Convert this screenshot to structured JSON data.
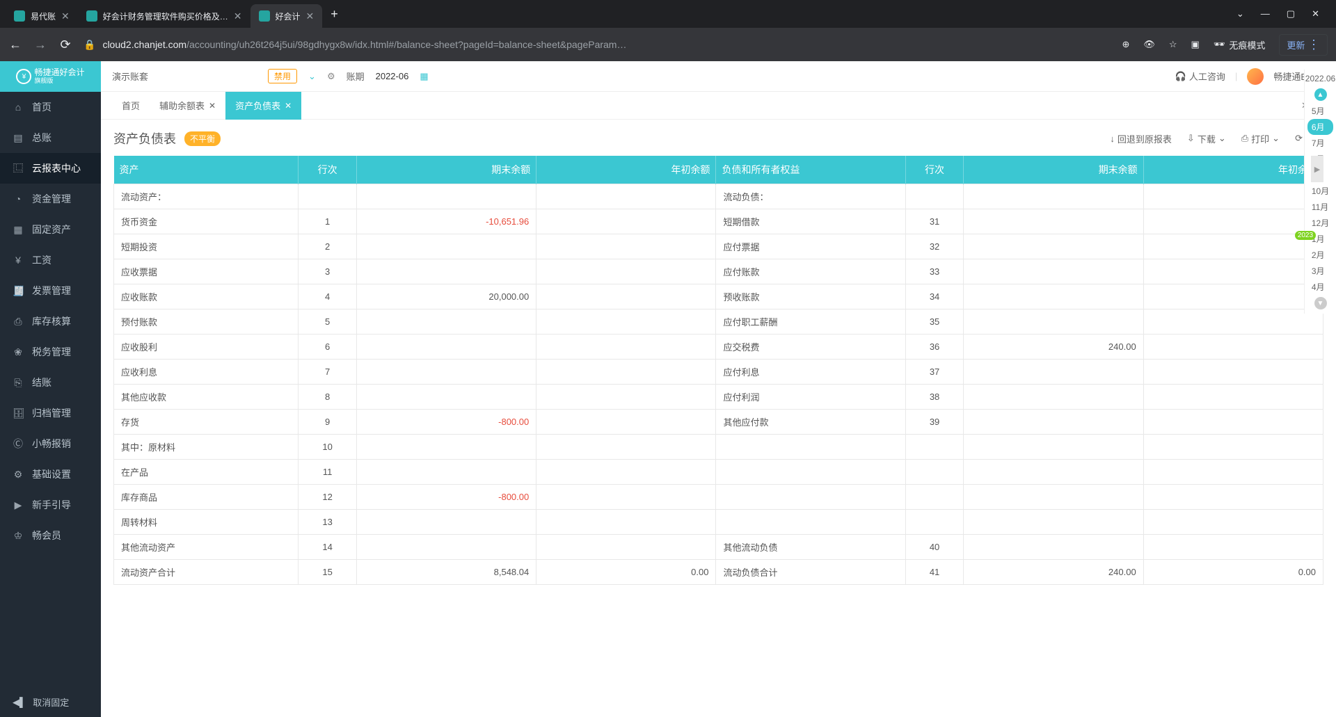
{
  "browser": {
    "tabs": [
      {
        "title": "易代账",
        "active": false
      },
      {
        "title": "好会计财务管理软件购买价格及…",
        "active": false
      },
      {
        "title": "好会计",
        "active": true
      }
    ],
    "url_prefix": "cloud2.chanjet.com",
    "url_rest": "/accounting/uh26t264j5ui/98gdhygx8w/idx.html#/balance-sheet?pageId=balance-sheet&pageParam…",
    "incognito": "无痕模式",
    "update": "更新"
  },
  "logo": {
    "brand": "畅捷通好会计",
    "edition": "旗舰版"
  },
  "sidebar": [
    {
      "icon": "⌂",
      "label": "首页"
    },
    {
      "icon": "▤",
      "label": "总账"
    },
    {
      "icon": "⿺",
      "label": "云报表中心",
      "active": true
    },
    {
      "icon": "◔",
      "label": "资金管理"
    },
    {
      "icon": "▦",
      "label": "固定资产"
    },
    {
      "icon": "¥",
      "label": "工资"
    },
    {
      "icon": "🧾",
      "label": "发票管理"
    },
    {
      "icon": "⎙",
      "label": "库存核算"
    },
    {
      "icon": "❀",
      "label": "税务管理"
    },
    {
      "icon": "⎘",
      "label": "结账"
    },
    {
      "icon": "🗄",
      "label": "归档管理"
    },
    {
      "icon": "Ⓒ",
      "label": "小畅报销"
    },
    {
      "icon": "⚙",
      "label": "基础设置"
    },
    {
      "icon": "▶",
      "label": "新手引导"
    },
    {
      "icon": "♔",
      "label": "畅会员"
    }
  ],
  "sidebar_footer": "取消固定",
  "topbar": {
    "account": "演示账套",
    "disable_tag": "禁用",
    "period_label": "账期",
    "period_value": "2022-06",
    "support": "人工咨询",
    "username": "畅捷通B组…"
  },
  "page_tabs": [
    {
      "label": "首页",
      "closable": false
    },
    {
      "label": "辅助余额表",
      "closable": true
    },
    {
      "label": "资产负债表",
      "closable": true,
      "active": true
    }
  ],
  "page": {
    "title": "资产负债表",
    "badge": "不平衡",
    "actions": {
      "rollback": "回退到原报表",
      "download": "下载",
      "print": "打印",
      "refresh": "刷新"
    }
  },
  "table": {
    "headers": {
      "asset": "资产",
      "row": "行次",
      "end_bal": "期末余额",
      "begin_bal": "年初余额",
      "liab": "负债和所有者权益",
      "row2": "行次",
      "end_bal2": "期末余额",
      "begin_bal2": "年初余额"
    },
    "rows": [
      {
        "a": "流动资产：",
        "r": "",
        "eb": "",
        "bb": "",
        "l": "流动负债：",
        "r2": "",
        "eb2": "",
        "bb2": ""
      },
      {
        "a": "货币资金",
        "r": "1",
        "eb": "-10,651.96",
        "eb_neg": true,
        "bb": "",
        "l": "短期借款",
        "r2": "31",
        "eb2": "",
        "bb2": ""
      },
      {
        "a": "短期投资",
        "r": "2",
        "eb": "",
        "bb": "",
        "l": "应付票据",
        "r2": "32",
        "eb2": "",
        "bb2": ""
      },
      {
        "a": "应收票据",
        "r": "3",
        "eb": "",
        "bb": "",
        "l": "应付账款",
        "r2": "33",
        "eb2": "",
        "bb2": ""
      },
      {
        "a": "应收账款",
        "r": "4",
        "eb": "20,000.00",
        "bb": "",
        "l": "预收账款",
        "r2": "34",
        "eb2": "",
        "bb2": ""
      },
      {
        "a": "预付账款",
        "r": "5",
        "eb": "",
        "bb": "",
        "l": "应付职工薪酬",
        "r2": "35",
        "eb2": "",
        "bb2": ""
      },
      {
        "a": "应收股利",
        "r": "6",
        "eb": "",
        "bb": "",
        "l": "应交税费",
        "r2": "36",
        "eb2": "240.00",
        "bb2": ""
      },
      {
        "a": "应收利息",
        "r": "7",
        "eb": "",
        "bb": "",
        "l": "应付利息",
        "r2": "37",
        "eb2": "",
        "bb2": ""
      },
      {
        "a": "其他应收款",
        "r": "8",
        "eb": "",
        "bb": "",
        "l": "应付利润",
        "r2": "38",
        "eb2": "",
        "bb2": ""
      },
      {
        "a": "存货",
        "r": "9",
        "eb": "-800.00",
        "eb_neg": true,
        "bb": "",
        "l": "其他应付款",
        "r2": "39",
        "eb2": "",
        "bb2": ""
      },
      {
        "a": "其中：原材料",
        "r": "10",
        "eb": "",
        "bb": "",
        "l": "",
        "r2": "",
        "eb2": "",
        "bb2": ""
      },
      {
        "a": "在产品",
        "r": "11",
        "eb": "",
        "bb": "",
        "l": "",
        "r2": "",
        "eb2": "",
        "bb2": ""
      },
      {
        "a": "库存商品",
        "r": "12",
        "eb": "-800.00",
        "eb_neg": true,
        "bb": "",
        "l": "",
        "r2": "",
        "eb2": "",
        "bb2": ""
      },
      {
        "a": "周转材料",
        "r": "13",
        "eb": "",
        "bb": "",
        "l": "",
        "r2": "",
        "eb2": "",
        "bb2": ""
      },
      {
        "a": "其他流动资产",
        "r": "14",
        "eb": "",
        "bb": "",
        "l": "其他流动负债",
        "r2": "40",
        "eb2": "",
        "bb2": ""
      },
      {
        "a": "流动资产合计",
        "r": "15",
        "eb": "8,548.04",
        "bb": "0.00",
        "l": "流动负债合计",
        "r2": "41",
        "eb2": "240.00",
        "bb2": "0.00"
      }
    ]
  },
  "month_strip": {
    "year": "2022.06",
    "months": [
      "5月",
      "6月",
      "7月",
      "8月",
      "9月",
      "10月",
      "11月",
      "12月",
      "1月",
      "2月",
      "3月",
      "4月"
    ],
    "active": "6月",
    "next_year_at": "1月",
    "next_year": "2023"
  }
}
